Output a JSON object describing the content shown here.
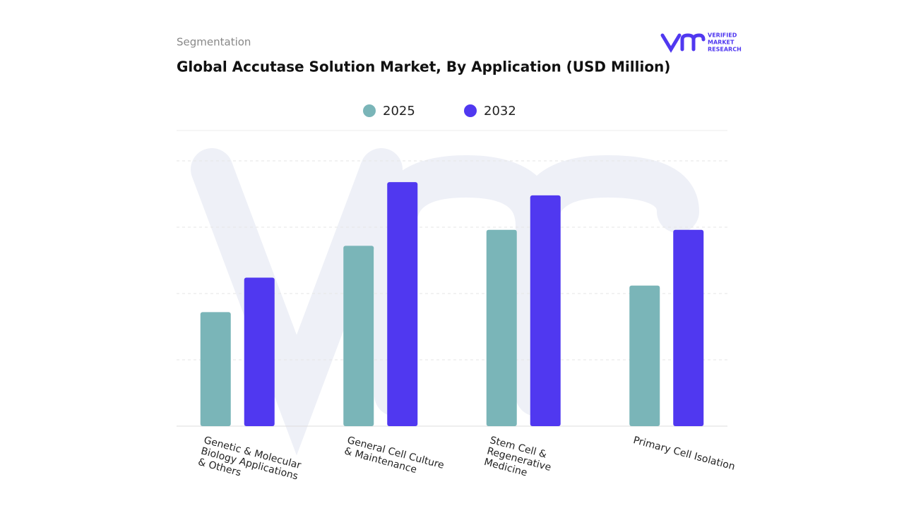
{
  "header": {
    "section": "Segmentation",
    "brand": [
      "VERIFIED",
      "MARKET",
      "RESEARCH"
    ]
  },
  "chart_data": {
    "type": "bar",
    "title": "Global Accutase Solution Market, By Application (USD Million)",
    "categories": [
      "Genetic & Molecular Biology Applications & Others",
      "General Cell Culture & Maintenance",
      "Stem Cell & Regenerative Medicine",
      "Primary Cell Isolation"
    ],
    "series": [
      {
        "name": "2025",
        "color": "#7ab5b8",
        "values": [
          43,
          68,
          74,
          53
        ]
      },
      {
        "name": "2032",
        "color": "#5038f0",
        "values": [
          56,
          92,
          87,
          74
        ]
      }
    ],
    "ylim": [
      0,
      100
    ],
    "yticks": [
      25,
      50,
      75,
      100
    ],
    "grid": true
  }
}
